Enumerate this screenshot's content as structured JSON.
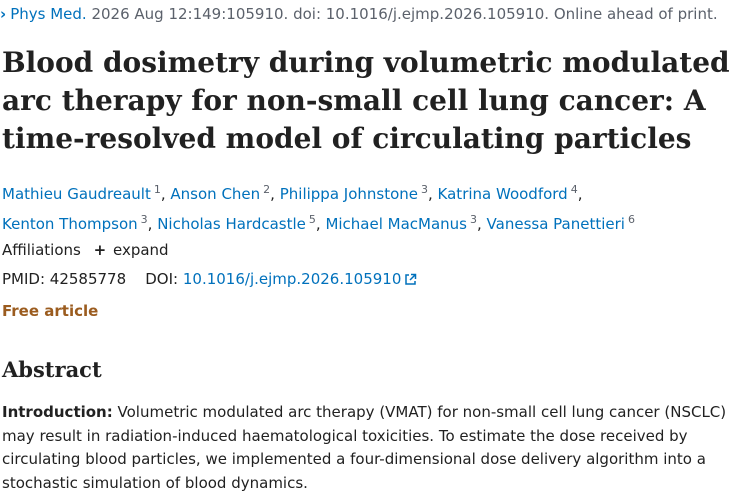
{
  "citation": {
    "journal": "Phys Med.",
    "details": "2026 Aug 12:149:105910. doi: 10.1016/j.ejmp.2026.105910. Online ahead of print."
  },
  "title": "Blood dosimetry during volumetric modulated arc therapy for non-small cell lung cancer: A time-resolved model of circulating particles",
  "authors": [
    {
      "name": "Mathieu Gaudreault",
      "aff": "1"
    },
    {
      "name": "Anson Chen",
      "aff": "2"
    },
    {
      "name": "Philippa Johnstone",
      "aff": "3"
    },
    {
      "name": "Katrina Woodford",
      "aff": "4"
    },
    {
      "name": "Kenton Thompson",
      "aff": "3"
    },
    {
      "name": "Nicholas Hardcastle",
      "aff": "5"
    },
    {
      "name": "Michael MacManus",
      "aff": "3"
    },
    {
      "name": "Vanessa Panettieri",
      "aff": "6"
    }
  ],
  "affiliations": {
    "label": "Affiliations",
    "expand": "expand"
  },
  "ids": {
    "pmid_label": "PMID:",
    "pmid": "42585778",
    "doi_label": "DOI:",
    "doi": "10.1016/j.ejmp.2026.105910"
  },
  "free_article": "Free article",
  "abstract": {
    "heading": "Abstract",
    "intro_label": "Introduction:",
    "intro_text": "Volumetric modulated arc therapy (VMAT) for non-small cell lung cancer (NSCLC) may result in radiation-induced haematological toxicities. To estimate the dose received by circulating blood particles, we implemented a four-dimensional dose delivery algorithm into a stochastic simulation of blood dynamics."
  },
  "colors": {
    "link": "#0071bc",
    "free_article": "#9b5c1f",
    "text": "#212121"
  }
}
